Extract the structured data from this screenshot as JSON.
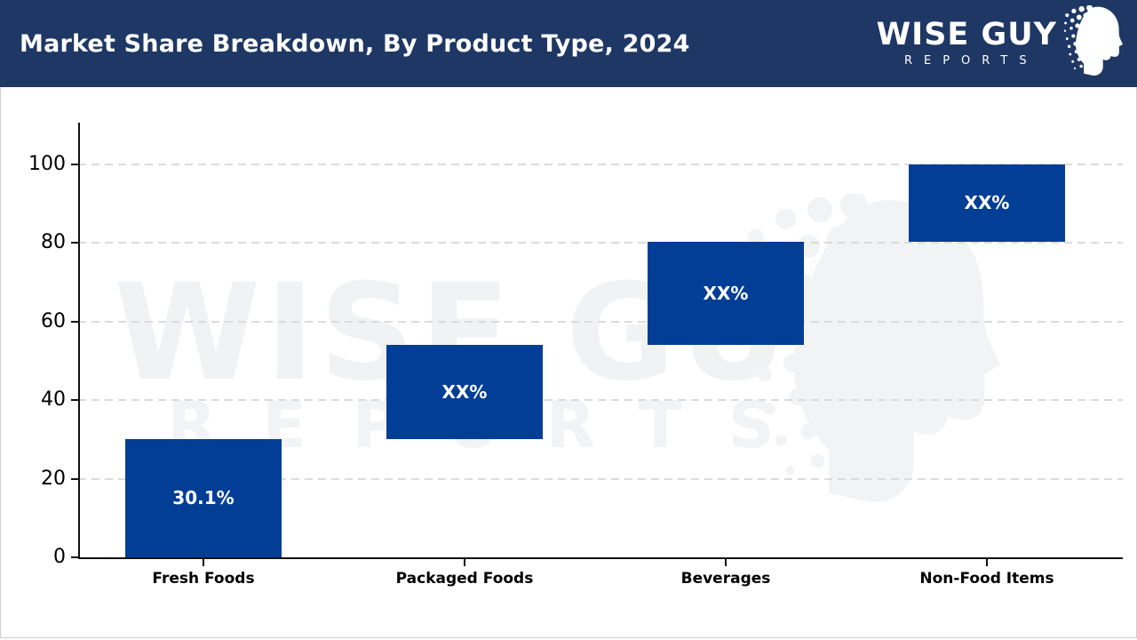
{
  "header": {
    "title": "Market Share Breakdown, By Product Type, 2024",
    "logo": {
      "line1": "WISE GUY",
      "line2": "REPORTS"
    }
  },
  "watermark": {
    "line1": "WISE GUY",
    "line2": "REPORTS"
  },
  "chart_data": {
    "type": "bar",
    "subtype": "waterfall",
    "title": "Market Share Breakdown, By Product Type, 2024",
    "categories": [
      "Fresh Foods",
      "Packaged Foods",
      "Beverages",
      "Non-Food Items"
    ],
    "segments": [
      {
        "category": "Fresh Foods",
        "start": 0,
        "end": 30.1,
        "label": "30.1%"
      },
      {
        "category": "Packaged Foods",
        "start": 30.1,
        "end": 54,
        "label": "XX%"
      },
      {
        "category": "Beverages",
        "start": 54,
        "end": 80.4,
        "label": "XX%"
      },
      {
        "category": "Non-Food Items",
        "start": 80.4,
        "end": 100,
        "label": "XX%"
      }
    ],
    "xlabel": "",
    "ylabel": "",
    "ylim": [
      0,
      110
    ],
    "yticks": [
      0,
      20,
      40,
      60,
      80,
      100
    ],
    "grid": "horizontal-dashed",
    "legend": "none",
    "bar_color": "#033E96",
    "bar_label_color": "#FFFFFF",
    "header_color": "#1E3764",
    "watermark_color": "#F1F2F4"
  }
}
